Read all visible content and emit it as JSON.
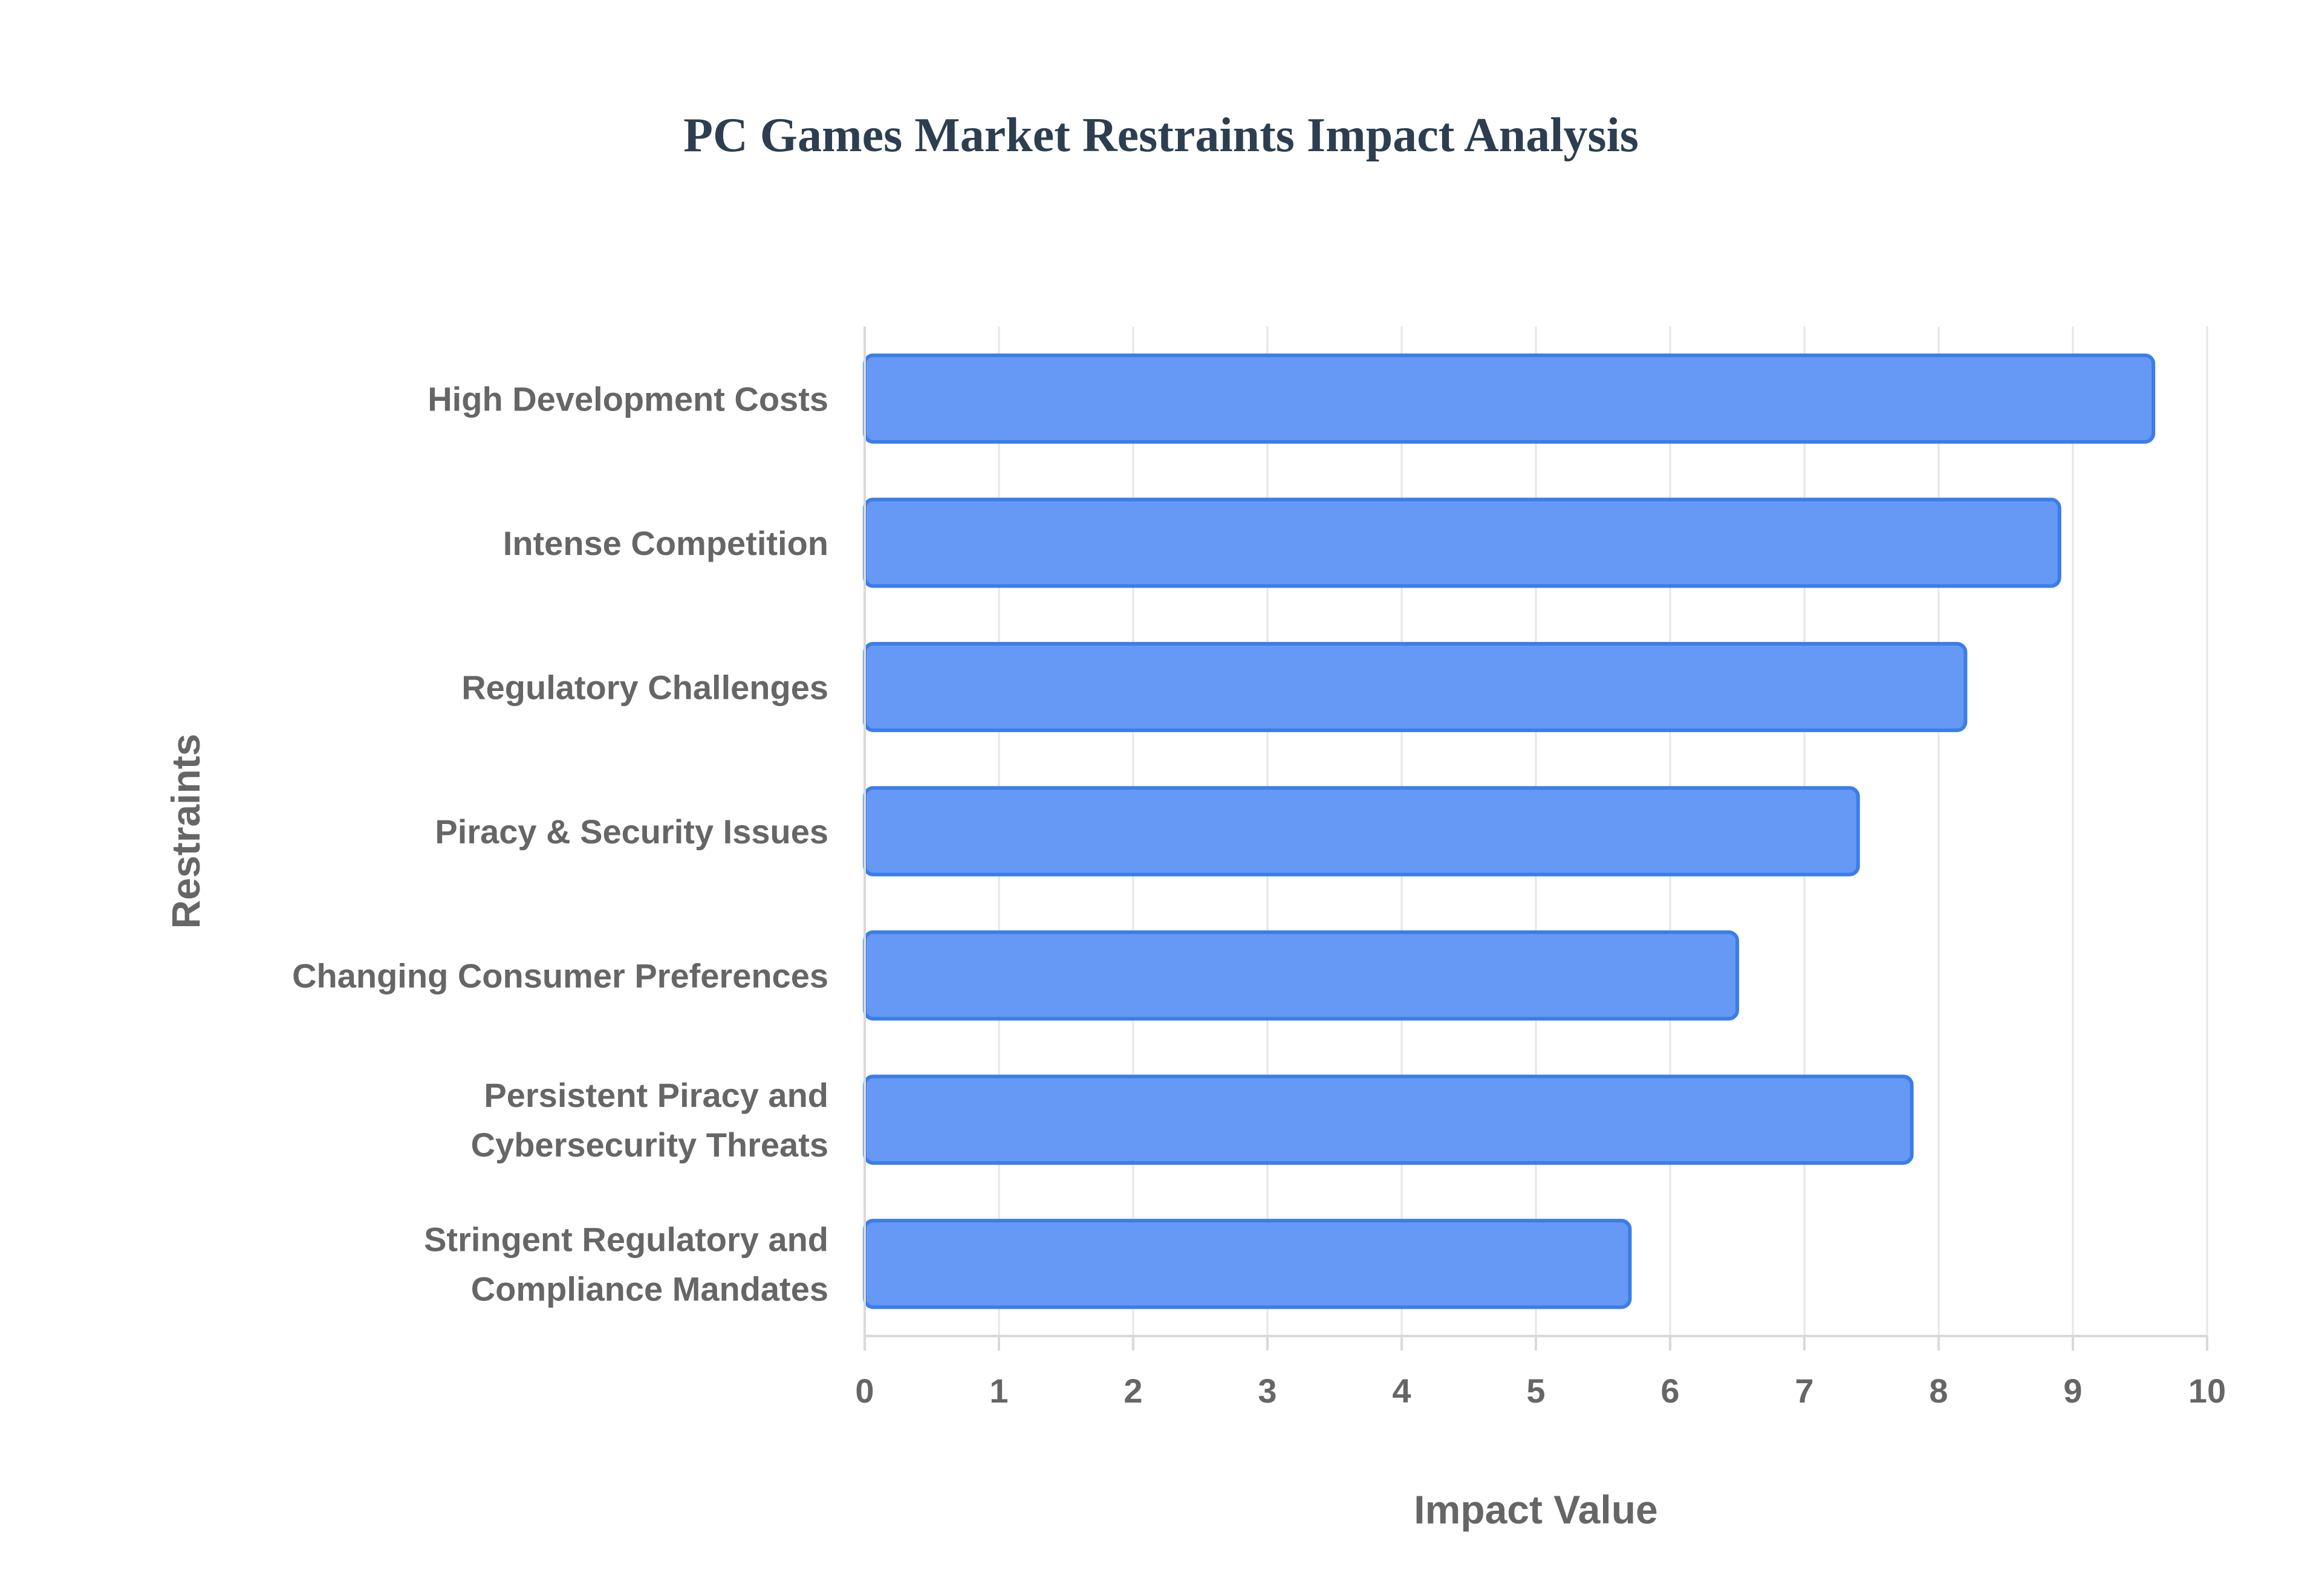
{
  "chart_data": {
    "type": "bar",
    "orientation": "horizontal",
    "title": "PC Games Market Restraints Impact Analysis",
    "xlabel": "Impact Value",
    "ylabel": "Restraints",
    "xlim": [
      0,
      10
    ],
    "xticks": [
      "0",
      "1",
      "2",
      "3",
      "4",
      "5",
      "6",
      "7",
      "8",
      "9",
      "10"
    ],
    "grid": true,
    "categories": [
      [
        "High Development Costs"
      ],
      [
        "Intense Competition"
      ],
      [
        "Regulatory Challenges"
      ],
      [
        "Piracy & Security Issues"
      ],
      [
        "Changing Consumer Preferences"
      ],
      [
        "Persistent Piracy and",
        "Cybersecurity Threats"
      ],
      [
        "Stringent Regulatory and",
        "Compliance Mandates"
      ]
    ],
    "values": [
      9.6,
      8.9,
      8.2,
      7.4,
      6.5,
      7.8,
      5.7
    ],
    "colors": {
      "bar_fill": "#6699f5",
      "bar_stroke": "#3b7de9"
    }
  }
}
